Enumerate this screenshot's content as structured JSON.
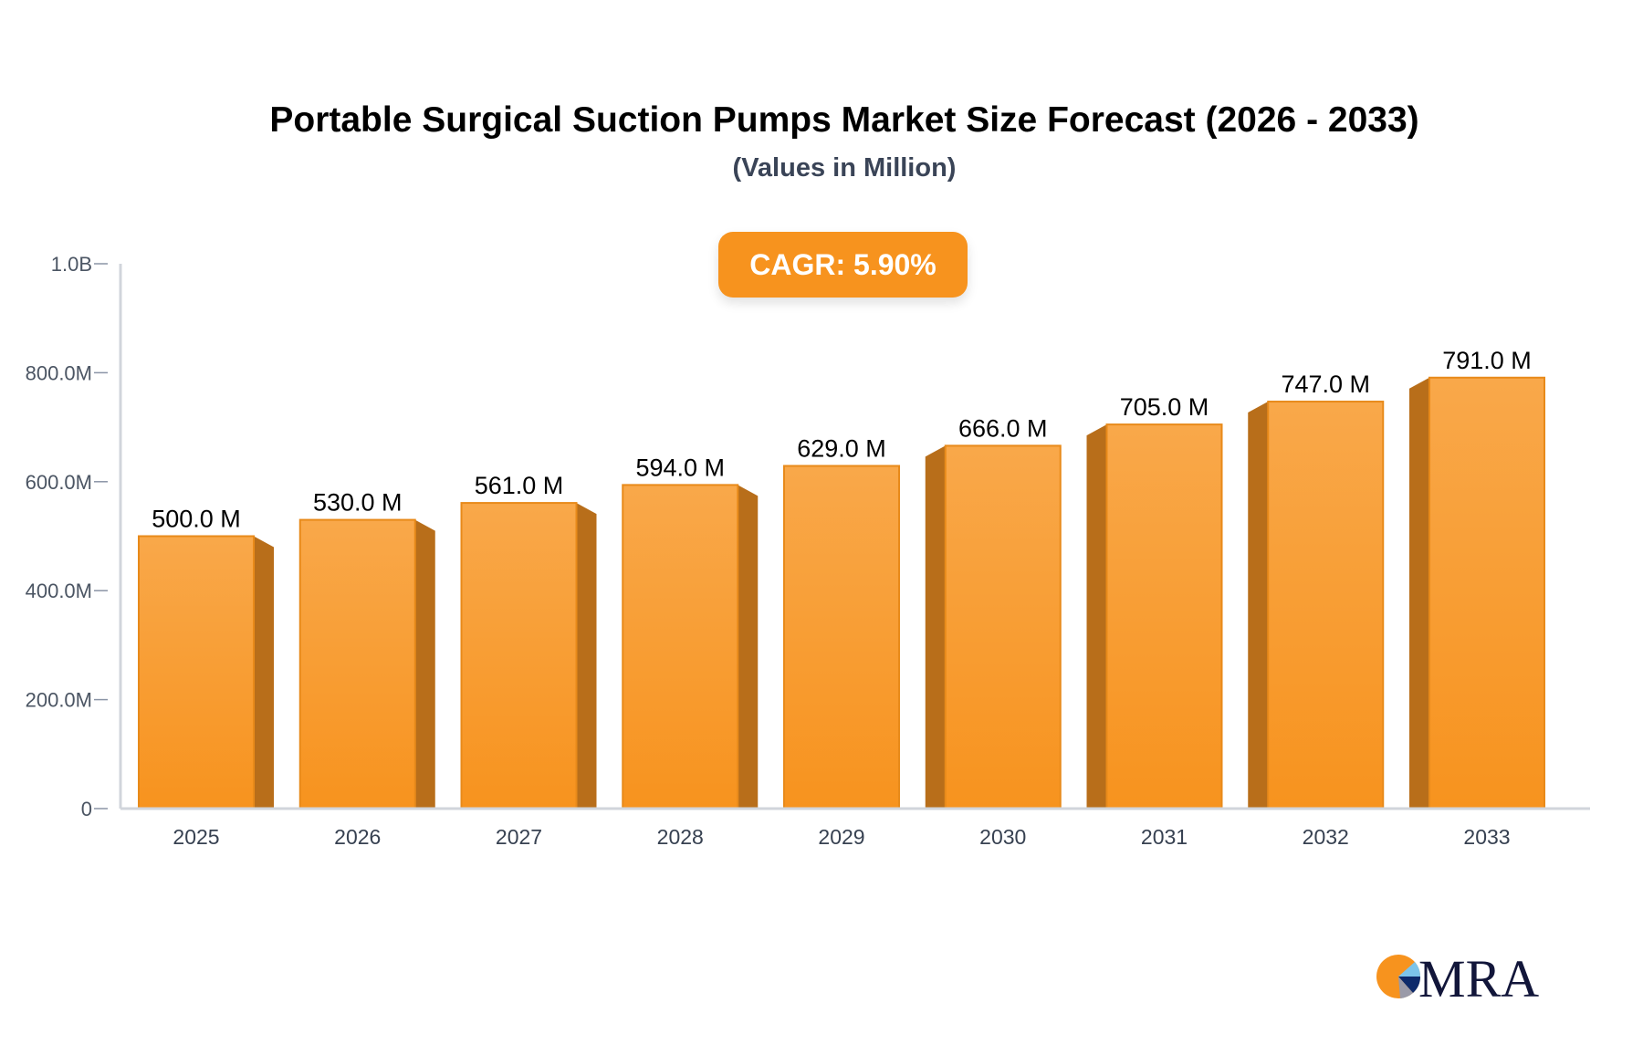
{
  "title": "Portable Surgical Suction Pumps Market Size Forecast (2026 - 2033)",
  "subtitle": "(Values in Million)",
  "cagr_label": "CAGR: 5.90%",
  "logo_text": "MRA",
  "colors": {
    "bar_front": "#f7931e",
    "bar_top": "#f9a84a",
    "bar_side": "#b86e1a",
    "axis": "#d1d5db",
    "badge": "#f7931e"
  },
  "chart_data": {
    "type": "bar",
    "title": "Portable Surgical Suction Pumps Market Size Forecast (2026 - 2033)",
    "subtitle": "(Values in Million)",
    "categories": [
      "2025",
      "2026",
      "2027",
      "2028",
      "2029",
      "2030",
      "2031",
      "2032",
      "2033"
    ],
    "values": [
      500.0,
      530.0,
      561.0,
      594.0,
      629.0,
      666.0,
      705.0,
      747.0,
      791.0
    ],
    "data_labels": [
      "500.0 M",
      "530.0 M",
      "561.0 M",
      "594.0 M",
      "629.0 M",
      "666.0 M",
      "705.0 M",
      "747.0 M",
      "791.0 M"
    ],
    "unit": "Million",
    "ylim": [
      0,
      1000
    ],
    "yticks": [
      0,
      200,
      400,
      600,
      800,
      1000
    ],
    "ytick_labels": [
      "0",
      "200.0M",
      "400.0M",
      "600.0M",
      "800.0M",
      "1.0B"
    ],
    "grid": false,
    "legend": "none"
  }
}
